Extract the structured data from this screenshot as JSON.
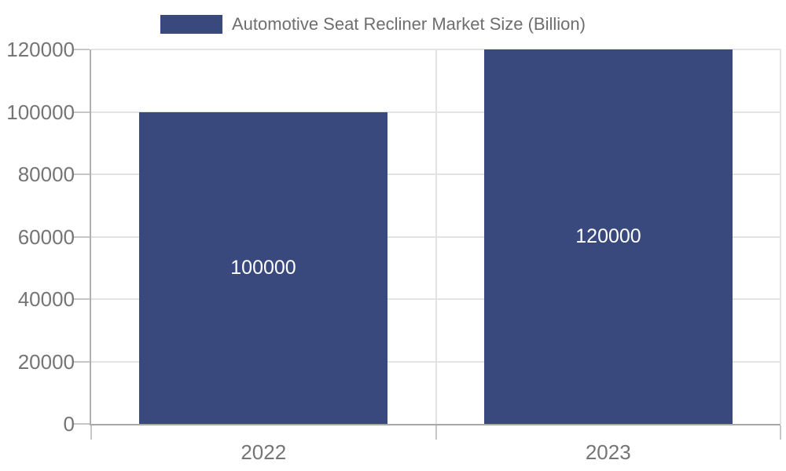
{
  "chart_data": {
    "type": "bar",
    "title": "Automotive Seat Recliner Market Size (Billion)",
    "legend": {
      "label": "Automotive Seat Recliner Market Size (Billion)",
      "position": "top"
    },
    "categories": [
      "2022",
      "2023"
    ],
    "values": [
      100000,
      120000
    ],
    "value_labels": [
      "100000",
      "120000"
    ],
    "yticks": [
      0,
      20000,
      40000,
      60000,
      80000,
      100000,
      120000
    ],
    "ytick_labels": [
      "0",
      "20000",
      "40000",
      "60000",
      "80000",
      "100000",
      "120000"
    ],
    "ylim": [
      0,
      120000
    ],
    "xlabel": "",
    "ylabel": "",
    "grid": true,
    "legend_position": "top",
    "colors": {
      "bar": "#39497E",
      "bar_label_text": "#FFFFFF",
      "axis_label_text": "#757575",
      "title_text": "#6E6E6E",
      "grid_line": "#E3E3E3",
      "y_axis_line": "#B0B0B0",
      "x_axis_line": "#A8A8A8",
      "tick": "#C6C6C6",
      "background": "#FFFFFF"
    }
  }
}
